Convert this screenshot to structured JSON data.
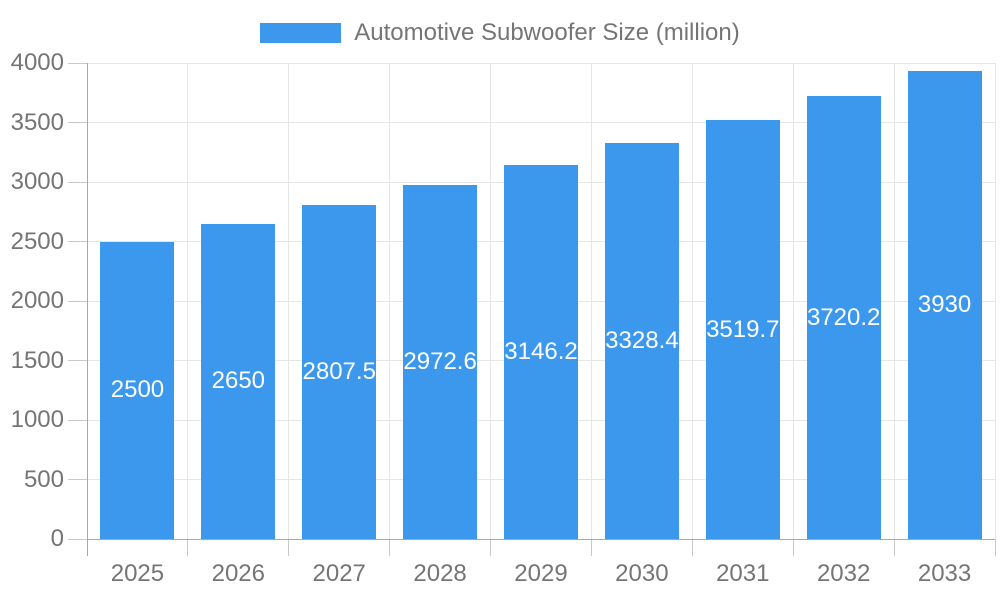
{
  "chart_data": {
    "type": "bar",
    "title": "Automotive Subwoofer Size (million)",
    "categories": [
      "2025",
      "2026",
      "2027",
      "2028",
      "2029",
      "2030",
      "2031",
      "2032",
      "2033"
    ],
    "values": [
      2500,
      2650,
      2807.5,
      2972.6,
      3146.2,
      3328.4,
      3519.7,
      3720.2,
      3930
    ],
    "value_labels": [
      "2500",
      "2650",
      "2807.5",
      "2972.6",
      "3146.2",
      "3328.4",
      "3519.7",
      "3720.2",
      "3930"
    ],
    "xlabel": "",
    "ylabel": "",
    "ylim": [
      0,
      4000
    ],
    "yticks": [
      0,
      500,
      1000,
      1500,
      2000,
      2500,
      3000,
      3500,
      4000
    ],
    "grid": true,
    "legend_position": "top",
    "value_label_position": "inside-center"
  },
  "colors": {
    "bar": "#3c98ed",
    "grid": "#e6e6e6",
    "axis": "#a8a8a8",
    "tick": "#c8c8c8",
    "label_text": "#757575",
    "value_text": "#ffffff",
    "background": "#ffffff"
  }
}
